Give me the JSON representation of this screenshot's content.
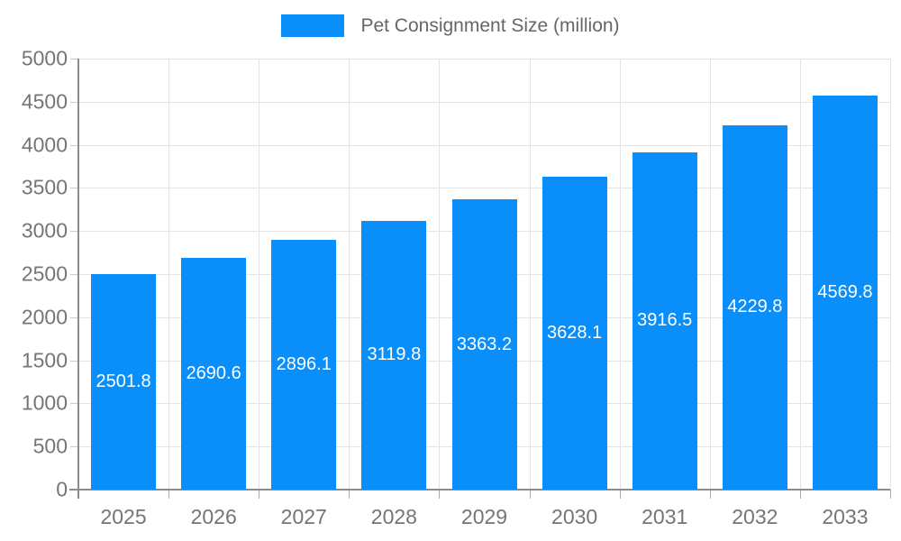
{
  "legend": {
    "label": "Pet Consignment Size (million)"
  },
  "colors": {
    "bar": "#0a8ef9",
    "grid": "#e4e4e4",
    "axis": "#8c8c8c",
    "axis_label": "#757575",
    "bar_label": "#ffffff",
    "legend_text": "#666666"
  },
  "chart_data": {
    "type": "bar",
    "title": "",
    "series_name": "Pet Consignment Size (million)",
    "categories": [
      "2025",
      "2026",
      "2027",
      "2028",
      "2029",
      "2030",
      "2031",
      "2032",
      "2033"
    ],
    "values": [
      2501.8,
      2690.6,
      2896.1,
      3119.8,
      3363.2,
      3628.1,
      3916.5,
      4229.8,
      4569.8
    ],
    "value_labels": [
      "2501.8",
      "2690.6",
      "2896.1",
      "3119.8",
      "3363.2",
      "3628.1",
      "3916.5",
      "4229.8",
      "4569.8"
    ],
    "xlabel": "",
    "ylabel": "",
    "ylim": [
      0,
      5000
    ],
    "ytick_interval": 500,
    "yticks": [
      0,
      500,
      1000,
      1500,
      2000,
      2500,
      3000,
      3500,
      4000,
      4500,
      5000
    ],
    "grid": true,
    "legend_position": "top",
    "bar_label_position": "inside-center"
  }
}
